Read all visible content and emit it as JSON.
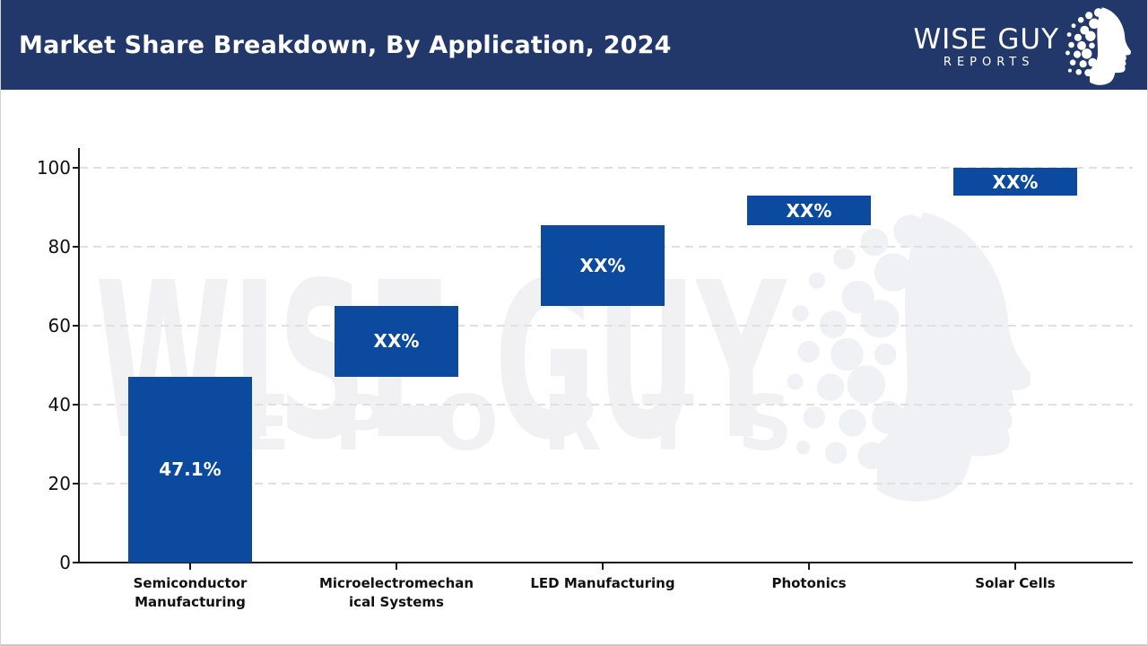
{
  "header": {
    "title": "Market Share Breakdown, By Application, 2024",
    "logo": {
      "brand_top": "WISE GUY",
      "brand_bottom": "REPORTS"
    }
  },
  "watermark": {
    "line1": "WISE GUY",
    "line2": "REPORTS"
  },
  "chart_data": {
    "type": "bar",
    "variant": "waterfall",
    "title": "Market Share Breakdown, By Application, 2024",
    "categories": [
      "Semiconductor Manufacturing",
      "Microelectromechanical Systems",
      "LED Manufacturing",
      "Photonics",
      "Solar Cells"
    ],
    "category_label_lines": [
      [
        "Semiconductor",
        "Manufacturing"
      ],
      [
        "Microelectromechan",
        "ical Systems"
      ],
      [
        "LED Manufacturing"
      ],
      [
        "Photonics"
      ],
      [
        "Solar Cells"
      ]
    ],
    "series": [
      {
        "name": "Market Share %",
        "segments": [
          {
            "category": "Semiconductor Manufacturing",
            "start": 0,
            "end": 47.1,
            "label": "47.1%"
          },
          {
            "category": "Microelectromechanical Systems",
            "start": 47.1,
            "end": 65.0,
            "label": "XX%"
          },
          {
            "category": "LED Manufacturing",
            "start": 65.0,
            "end": 85.5,
            "label": "XX%"
          },
          {
            "category": "Photonics",
            "start": 85.5,
            "end": 92.9,
            "label": "XX%"
          },
          {
            "category": "Solar Cells",
            "start": 92.9,
            "end": 100.0,
            "label": "XX%"
          }
        ]
      }
    ],
    "y_ticks": [
      0,
      20,
      40,
      60,
      80,
      100
    ],
    "ylim": [
      0,
      100
    ],
    "xlabel": "",
    "ylabel": "",
    "grid": "horizontal-dashed",
    "legend_position": "none",
    "colors": {
      "bar": "#0b4a9f",
      "bar_label": "#ffffff",
      "axis": "#1a1a1a",
      "grid": "#e0e0e0",
      "header_bg": "#22386a",
      "watermark": "#f1f1f4"
    }
  }
}
